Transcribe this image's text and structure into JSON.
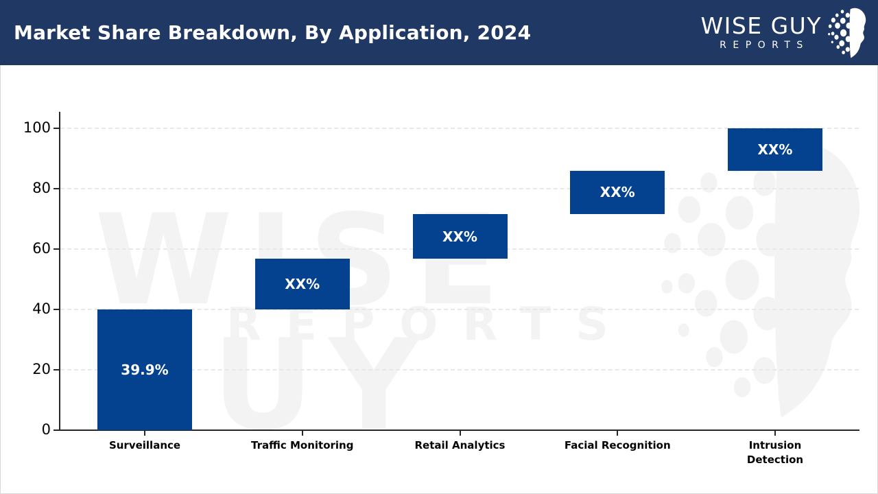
{
  "header": {
    "title": "Market Share Breakdown, By Application, 2024",
    "logo": {
      "line1": "WISE GUY",
      "line2": "REPORTS"
    },
    "bg_color": "#1f3864"
  },
  "watermark": {
    "line1": "WISE GUY",
    "line2": "REPORTS"
  },
  "chart_data": {
    "type": "bar",
    "subtype": "waterfall",
    "title": "Market Share Breakdown, By Application, 2024",
    "xlabel": "",
    "ylabel": "",
    "categories": [
      "Surveillance",
      "Traffic Monitoring",
      "Retail Analytics",
      "Facial Recognition",
      "Intrusion Detection"
    ],
    "category_display": [
      "Surveillance",
      "Traffic Monitoring",
      "Retail Analytics",
      "Facial Recognition",
      "Intrusion\nDetection"
    ],
    "series": [
      {
        "name": "Market Share (%)",
        "segments": [
          {
            "category": "Surveillance",
            "start": 0,
            "end": 39.9,
            "label": "39.9%"
          },
          {
            "category": "Traffic Monitoring",
            "start": 39.9,
            "end": 56.8,
            "label": "XX%"
          },
          {
            "category": "Retail Analytics",
            "start": 56.8,
            "end": 71.6,
            "label": "XX%"
          },
          {
            "category": "Facial Recognition",
            "start": 71.6,
            "end": 86.0,
            "label": "XX%"
          },
          {
            "category": "Intrusion Detection",
            "start": 86.0,
            "end": 100.0,
            "label": "XX%"
          }
        ]
      }
    ],
    "y_ticks": [
      0,
      20,
      40,
      60,
      80,
      100
    ],
    "ylim": [
      0,
      104
    ],
    "grid": "horizontal-dashed",
    "legend": "none",
    "colors": {
      "bar": "#04418f",
      "bar_label": "#ffffff",
      "axis": "#262626",
      "grid": "#e8e8e8",
      "header_bg": "#1f3864"
    }
  }
}
